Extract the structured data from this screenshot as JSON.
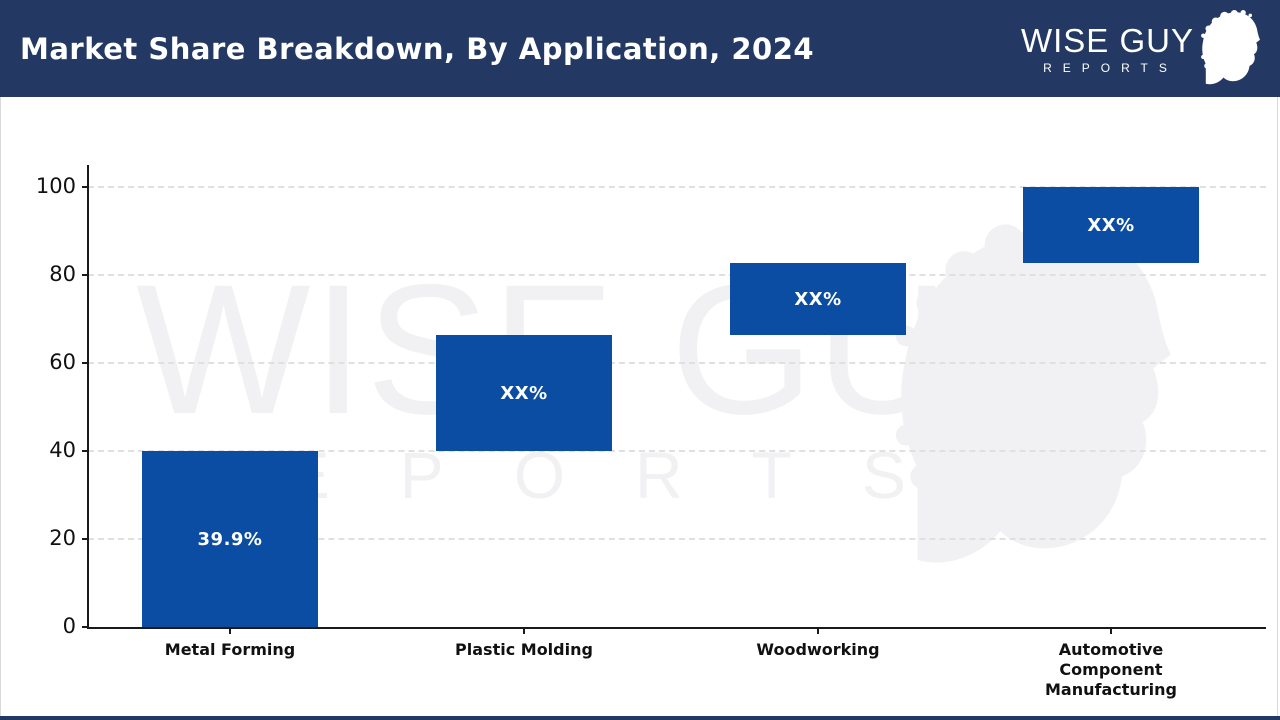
{
  "header": {
    "title": "Market Share Breakdown, By Application, 2024",
    "logo": {
      "line1": "WISE GUY",
      "line2": "REPORTS"
    }
  },
  "watermark": {
    "line1": "WISE GUY",
    "line2": "REPORTS"
  },
  "chart_data": {
    "type": "bar",
    "subtype": "waterfall-stacked-breakdown",
    "title": "Market Share Breakdown, By Application, 2024",
    "categories": [
      "Metal Forming",
      "Plastic Molding",
      "Woodworking",
      "Automotive Component Manufacturing"
    ],
    "segments": [
      {
        "category": "Metal Forming",
        "start": 0,
        "end": 39.9,
        "label": "39.9%"
      },
      {
        "category": "Plastic Molding",
        "start": 39.9,
        "end": 66.3,
        "label": "XX%"
      },
      {
        "category": "Woodworking",
        "start": 66.3,
        "end": 82.7,
        "label": "XX%"
      },
      {
        "category": "Automotive Component Manufacturing",
        "start": 82.7,
        "end": 100,
        "label": "XX%"
      }
    ],
    "yticks": [
      0,
      20,
      40,
      60,
      80,
      100
    ],
    "ylim": [
      0,
      105
    ],
    "xlabel": "",
    "ylabel": "",
    "grid": "horizontal-dashed",
    "legend": "none",
    "bar_color": "#0b4da2",
    "bar_label_color": "#ffffff",
    "axis_color": "#1a1a1a",
    "gridline_color": "#e0e0e0"
  },
  "colors": {
    "header_bg": "#233963",
    "footer_bg": "#233963",
    "watermark": "#f1f1f3",
    "page_bg": "#ffffff"
  }
}
